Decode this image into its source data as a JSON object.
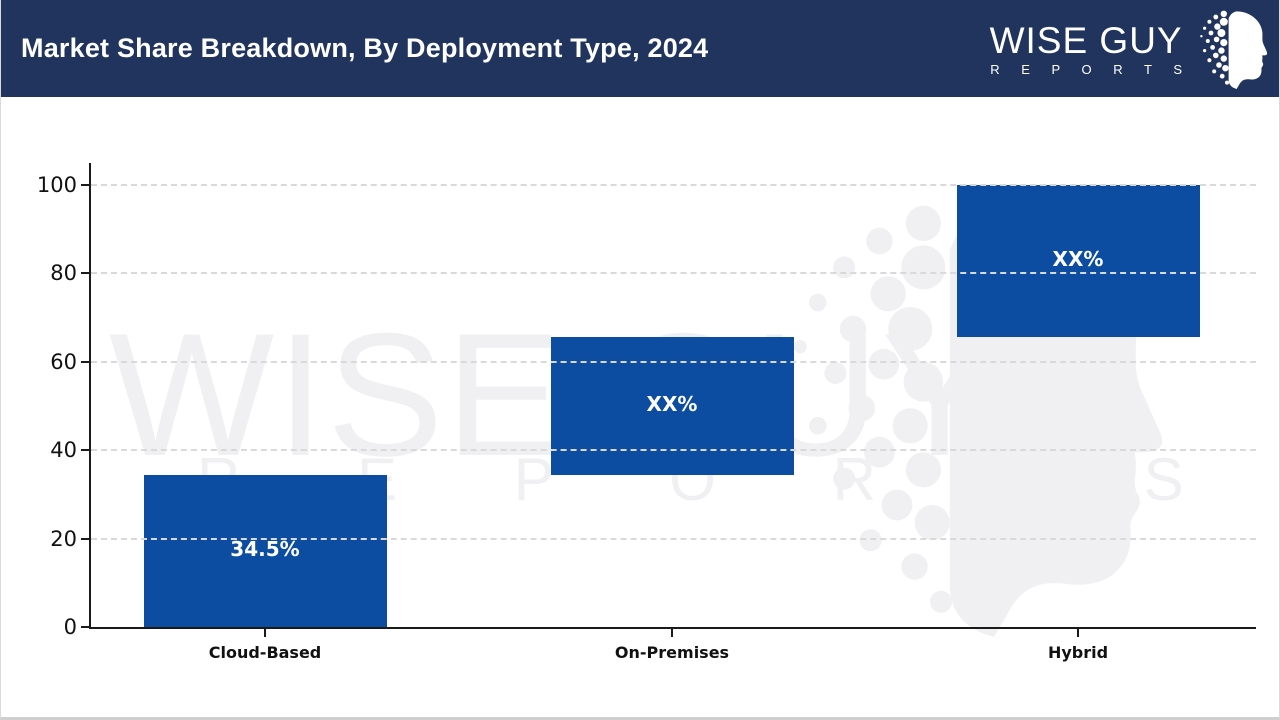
{
  "header": {
    "title": "Market Share Breakdown, By Deployment Type, 2024",
    "brand": {
      "name_line": "WISE GUY",
      "sub_line": "R E P O R T S"
    }
  },
  "watermark": {
    "name_line": "WISE GUY",
    "sub_line": "R E P O R T S"
  },
  "colors": {
    "header_bg": "#20345e",
    "header_text": "#ffffff",
    "bar": "#0d4da1",
    "bar_label": "#ffffff",
    "gridline": "#d9d9d9",
    "axis": "#1a1a1a",
    "watermark": "#f0f0f2"
  },
  "chart_data": {
    "type": "bar",
    "subtype": "floating-waterfall",
    "title": "Market Share Breakdown, By Deployment Type, 2024",
    "categories": [
      "Cloud-Based",
      "On-Premises",
      "Hybrid"
    ],
    "segments": [
      {
        "category": "Cloud-Based",
        "start": 0,
        "end": 34.5,
        "label": "34.5%"
      },
      {
        "category": "On-Premises",
        "start": 34.5,
        "end": 65.5,
        "label": "XX%"
      },
      {
        "category": "Hybrid",
        "start": 65.5,
        "end": 100,
        "label": "XX%"
      }
    ],
    "xlabel": "",
    "ylabel": "",
    "ylim": [
      0,
      100
    ],
    "y_ticks": [
      0,
      20,
      40,
      60,
      80,
      100
    ],
    "grid": "horizontal-dashed-over-bars",
    "legend": "none"
  }
}
